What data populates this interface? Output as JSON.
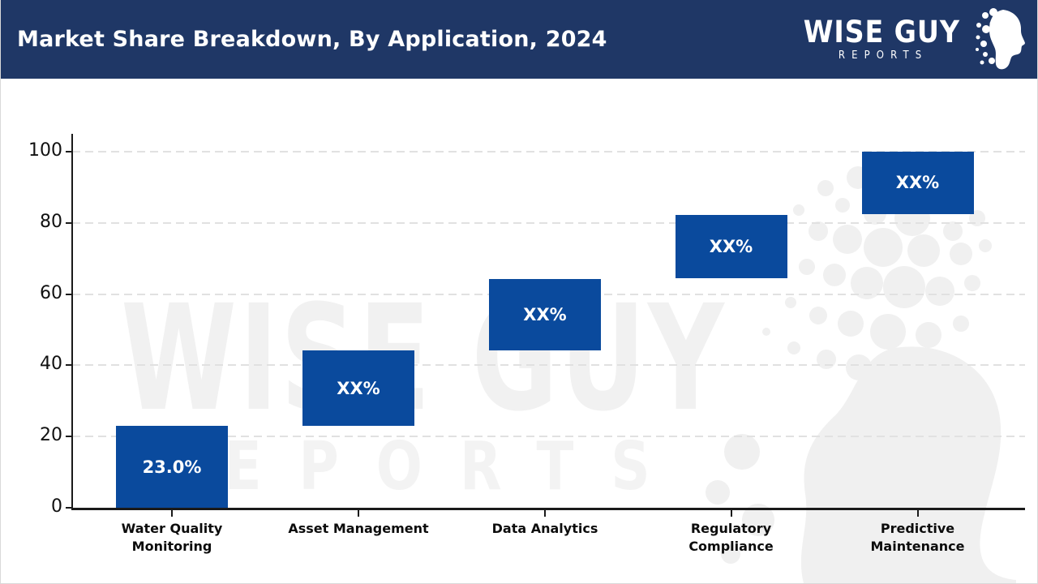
{
  "header": {
    "title": "Market Share Breakdown, By Application, 2024",
    "logo": {
      "wordmark": "WISE GUY",
      "subtext": "REPORTS"
    },
    "bg_color": "#1f3766"
  },
  "watermark": {
    "line1": "WISE GUY",
    "line2": "REPORTS"
  },
  "chart_data": {
    "type": "bar",
    "subtype": "waterfall-market-share-breakdown",
    "title": "Market Share Breakdown, By Application, 2024",
    "categories": [
      "Water Quality Monitoring",
      "Asset Management",
      "Data Analytics",
      "Regulatory Compliance",
      "Predictive Maintenance"
    ],
    "category_lines": [
      [
        "Water Quality",
        "Monitoring"
      ],
      [
        "Asset Management"
      ],
      [
        "Data Analytics"
      ],
      [
        "Regulatory",
        "Compliance"
      ],
      [
        "Predictive",
        "Maintenance"
      ]
    ],
    "series": [
      {
        "name": "Market Share (%)",
        "segments": [
          {
            "category": "Water Quality Monitoring",
            "start": 0,
            "end": 23.0,
            "value_label": "23.0%"
          },
          {
            "category": "Asset Management",
            "start": 23.0,
            "end": 44.1,
            "value_label": "XX%"
          },
          {
            "category": "Data Analytics",
            "start": 44.3,
            "end": 64.2,
            "value_label": "XX%"
          },
          {
            "category": "Regulatory Compliance",
            "start": 64.4,
            "end": 82.3,
            "value_label": "XX%"
          },
          {
            "category": "Predictive Maintenance",
            "start": 82.5,
            "end": 100.0,
            "value_label": "XX%"
          }
        ]
      }
    ],
    "ylim": [
      0,
      100
    ],
    "yticks": [
      0,
      20,
      40,
      60,
      80,
      100
    ],
    "grid": "horizontal-dashed",
    "legend": "none",
    "bar_color": "#0a4a9d",
    "axis_color": "#1a1a1a",
    "grid_color": "#e1e1e1"
  }
}
